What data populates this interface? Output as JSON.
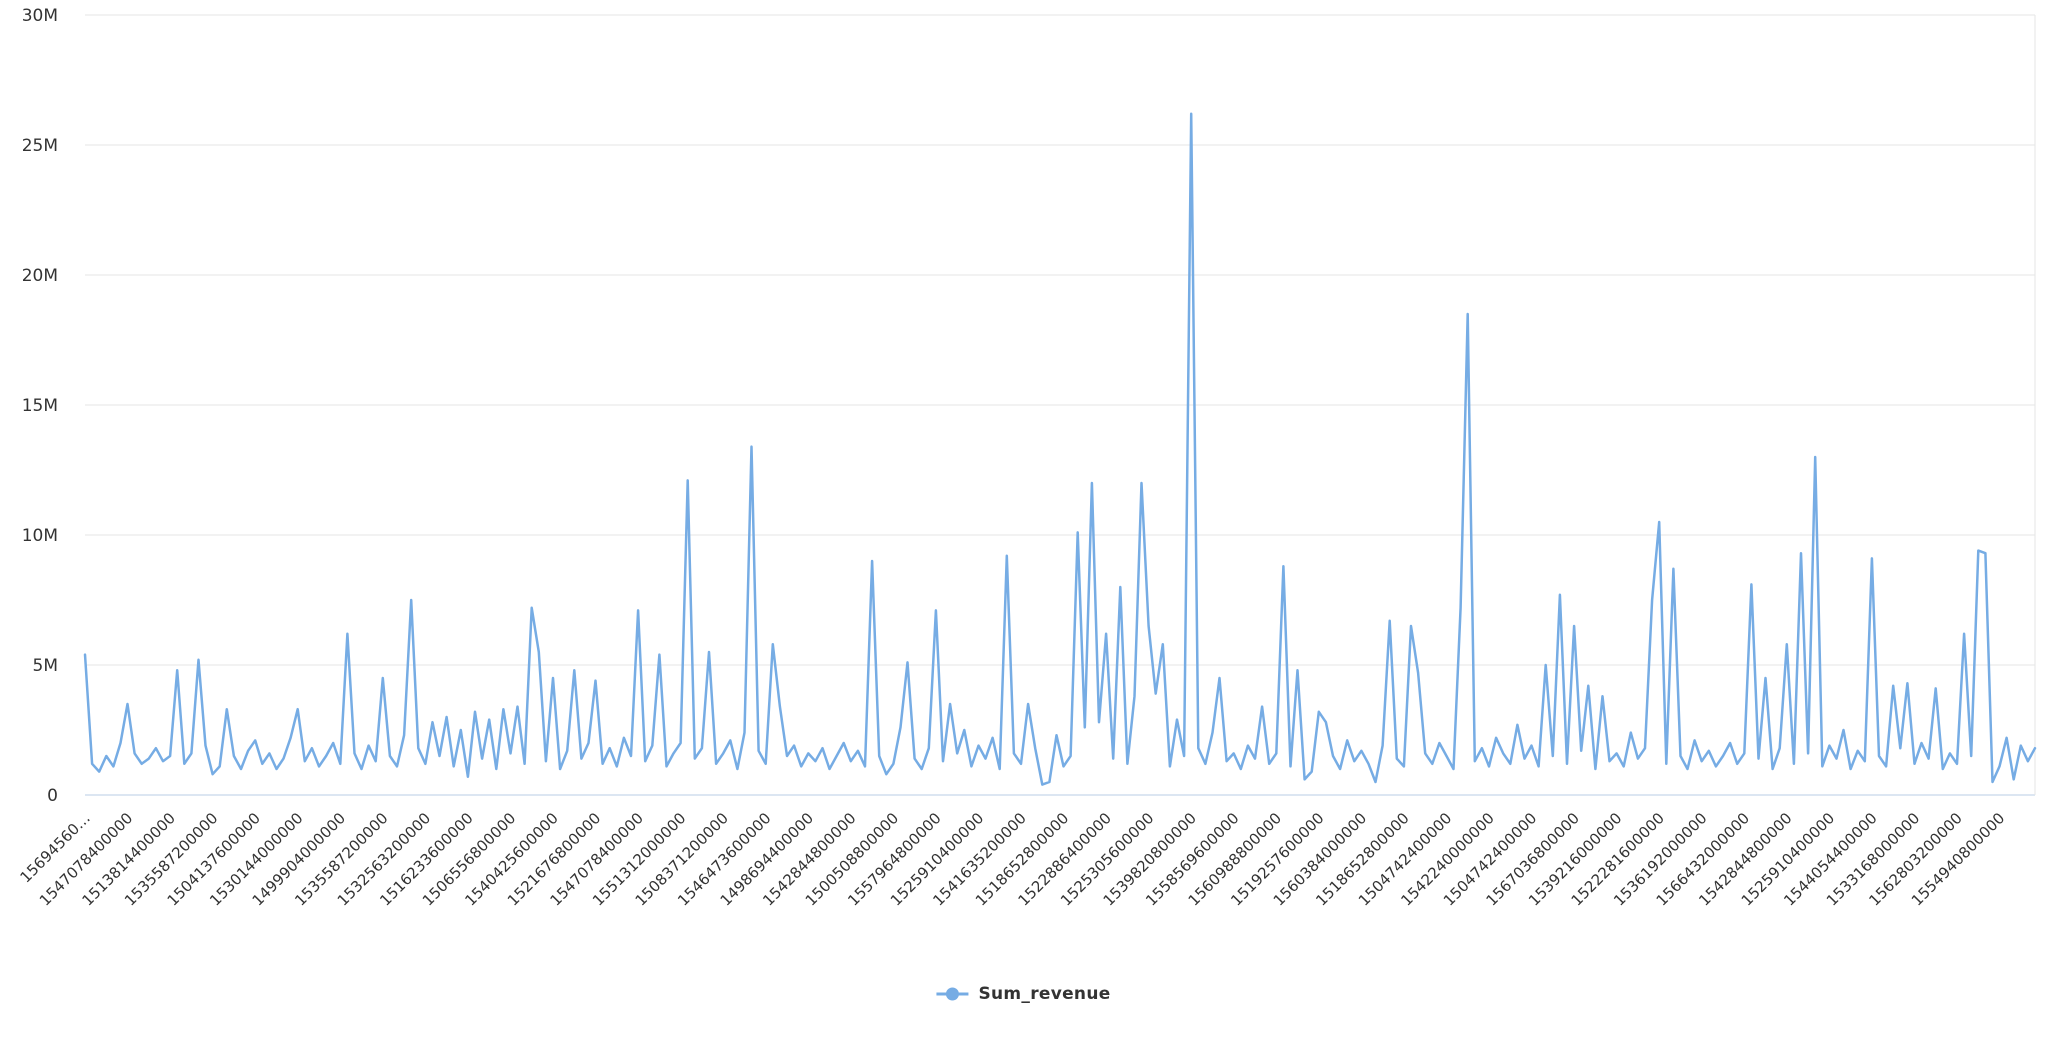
{
  "chart": {
    "background": "#ffffff",
    "line_color": "#76ace4",
    "grid_color": "#e5e5e5",
    "axis_line_color": "#b9cde6",
    "label_color": "#333333"
  },
  "chart_data": {
    "type": "line",
    "title": "",
    "xlabel": "",
    "ylabel": "",
    "grid": true,
    "legend_position": "bottom",
    "ylim": [
      0,
      30000000
    ],
    "y_max_millions": 30,
    "values_unit": "millions",
    "y_ticks": [
      "0",
      "5M",
      "10M",
      "15M",
      "20M",
      "25M",
      "30M"
    ],
    "x_tick_interval": 6,
    "x_tick_labels": [
      "15694560…",
      "1547078400000",
      "1513814400000",
      "1535587200000",
      "1504137600000",
      "1530144000000",
      "1499904000000",
      "1535587200000",
      "1532563200000",
      "1516233600000",
      "1506556800000",
      "1540425600000",
      "1521676800000",
      "1547078400000",
      "1551312000000",
      "1508371200000",
      "1546473600000",
      "1498694400000",
      "1542844800000",
      "1500508800000",
      "1557964800000",
      "1525910400000",
      "1541635200000",
      "1518652800000",
      "1522886400000",
      "1525305600000",
      "1539820800000",
      "1558569600000",
      "1560988800000",
      "1519257600000",
      "1560384000000",
      "1518652800000",
      "1504742400000",
      "1542240000000",
      "1504742400000",
      "1567036800000",
      "1539216000000",
      "1522281600000",
      "1536192000000",
      "1566432000000",
      "1542844800000",
      "1525910400000",
      "1544054400000",
      "1533168000000",
      "1562803200000",
      "1554940800000"
    ],
    "series": [
      {
        "name": "Sum_revenue",
        "values_in_millions": [
          5.4,
          1.2,
          0.9,
          1.5,
          1.1,
          2.0,
          3.5,
          1.6,
          1.2,
          1.4,
          1.8,
          1.3,
          1.5,
          4.8,
          1.2,
          1.6,
          5.2,
          1.9,
          0.8,
          1.1,
          3.3,
          1.5,
          1.0,
          1.7,
          2.1,
          1.2,
          1.6,
          1.0,
          1.4,
          2.2,
          3.3,
          1.3,
          1.8,
          1.1,
          1.5,
          2.0,
          1.2,
          6.2,
          1.6,
          1.0,
          1.9,
          1.3,
          4.5,
          1.5,
          1.1,
          2.3,
          7.5,
          1.8,
          1.2,
          2.8,
          1.5,
          3.0,
          1.1,
          2.5,
          0.7,
          3.2,
          1.4,
          2.9,
          1.0,
          3.3,
          1.6,
          3.4,
          1.2,
          7.2,
          5.5,
          1.3,
          4.5,
          1.0,
          1.7,
          4.8,
          1.4,
          2.0,
          4.4,
          1.2,
          1.8,
          1.1,
          2.2,
          1.5,
          7.1,
          1.3,
          1.9,
          5.4,
          1.1,
          1.6,
          2.0,
          12.1,
          1.4,
          1.8,
          5.5,
          1.2,
          1.6,
          2.1,
          1.0,
          2.4,
          13.4,
          1.7,
          1.2,
          5.8,
          3.4,
          1.5,
          1.9,
          1.1,
          1.6,
          1.3,
          1.8,
          1.0,
          1.5,
          2.0,
          1.3,
          1.7,
          1.1,
          9.0,
          1.5,
          0.8,
          1.2,
          2.6,
          5.1,
          1.4,
          1.0,
          1.8,
          7.1,
          1.3,
          3.5,
          1.6,
          2.5,
          1.1,
          1.9,
          1.4,
          2.2,
          1.0,
          9.2,
          1.6,
          1.2,
          3.5,
          1.8,
          0.4,
          0.5,
          2.3,
          1.1,
          1.5,
          10.1,
          2.6,
          12.0,
          2.8,
          6.2,
          1.4,
          8.0,
          1.2,
          3.8,
          12.0,
          6.5,
          3.9,
          5.8,
          1.1,
          2.9,
          1.5,
          26.2,
          1.8,
          1.2,
          2.4,
          4.5,
          1.3,
          1.6,
          1.0,
          1.9,
          1.4,
          3.4,
          1.2,
          1.6,
          8.8,
          1.1,
          4.8,
          0.6,
          0.9,
          3.2,
          2.8,
          1.5,
          1.0,
          2.1,
          1.3,
          1.7,
          1.2,
          0.5,
          1.9,
          6.7,
          1.4,
          1.1,
          6.5,
          4.7,
          1.6,
          1.2,
          2.0,
          1.5,
          1.0,
          7.2,
          18.5,
          1.3,
          1.8,
          1.1,
          2.2,
          1.6,
          1.2,
          2.7,
          1.4,
          1.9,
          1.1,
          5.0,
          1.5,
          7.7,
          1.2,
          6.5,
          1.7,
          4.2,
          1.0,
          3.8,
          1.3,
          1.6,
          1.1,
          2.4,
          1.4,
          1.8,
          7.5,
          10.5,
          1.2,
          8.7,
          1.5,
          1.0,
          2.1,
          1.3,
          1.7,
          1.1,
          1.5,
          2.0,
          1.2,
          1.6,
          8.1,
          1.4,
          4.5,
          1.0,
          1.8,
          5.8,
          1.2,
          9.3,
          1.6,
          13.0,
          1.1,
          1.9,
          1.4,
          2.5,
          1.0,
          1.7,
          1.3,
          9.1,
          1.5,
          1.1,
          4.2,
          1.8,
          4.3,
          1.2,
          2.0,
          1.4,
          4.1,
          1.0,
          1.6,
          1.2,
          6.2,
          1.5,
          9.4,
          9.3,
          0.5,
          1.1,
          2.2,
          0.6,
          1.9,
          1.3,
          1.8
        ]
      }
    ]
  }
}
